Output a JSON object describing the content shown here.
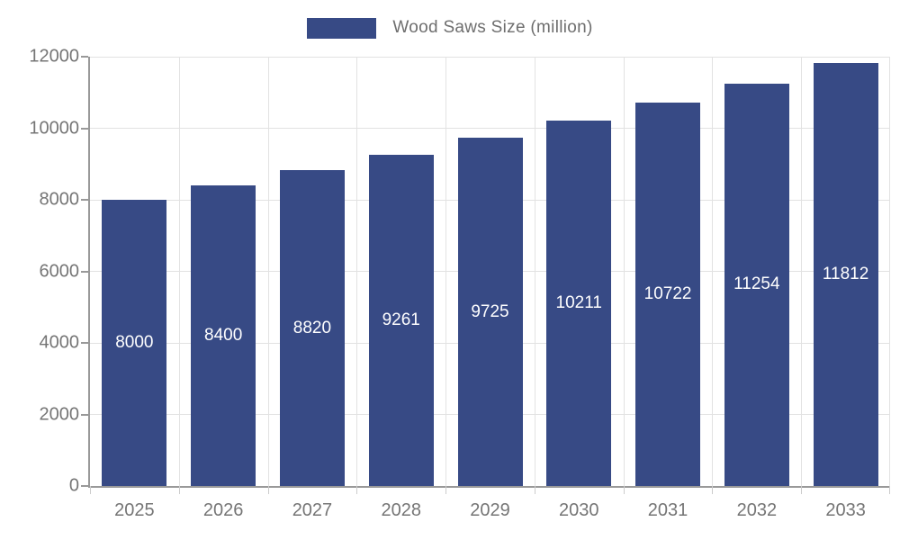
{
  "chart_data": {
    "type": "bar",
    "title": "",
    "legend_label": "Wood Saws Size (million)",
    "legend_position": "top-center",
    "categories": [
      "2025",
      "2026",
      "2027",
      "2028",
      "2029",
      "2030",
      "2031",
      "2032",
      "2033"
    ],
    "values": [
      8000,
      8400,
      8820,
      9261,
      9725,
      10211,
      10722,
      11254,
      11812
    ],
    "value_labels": [
      "8000",
      "8400",
      "8820",
      "9261",
      "9725",
      "10211",
      "10722",
      "11254",
      "11812"
    ],
    "xlabel": "",
    "ylabel": "",
    "ylim": [
      0,
      12000
    ],
    "yticks": [
      0,
      2000,
      4000,
      6000,
      8000,
      10000,
      12000
    ],
    "ytick_labels": [
      "0",
      "2000",
      "4000",
      "6000",
      "8000",
      "10000",
      "12000"
    ],
    "grid": true,
    "colors": {
      "bar": "#374A85",
      "bar_value_text": "#ffffff",
      "axis_line": "#999999",
      "gridline": "#e2e2e2",
      "tick_text": "#757575",
      "legend_text": "#6e6e6e"
    }
  }
}
